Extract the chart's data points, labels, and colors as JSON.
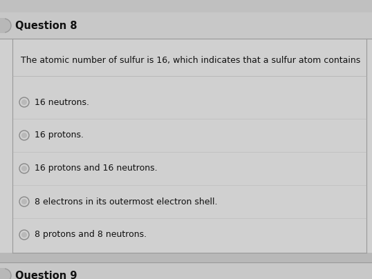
{
  "title": "Question 8",
  "question_text": "The atomic number of sulfur is 16, which indicates that a sulfur atom contains",
  "options": [
    "16 neutrons.",
    "16 protons.",
    "16 protons and 16 neutrons.",
    "8 electrons in its outermost electron shell.",
    "8 protons and 8 neutrons."
  ],
  "bg_color": "#b8b8b8",
  "outer_bg": "#b0b0b0",
  "card_bg": "#d4d4d4",
  "header_bg": "#c8c8c8",
  "body_bg": "#d0d0d0",
  "footer_bg": "#c8c8c8",
  "border_color": "#999999",
  "title_fontsize": 10.5,
  "question_fontsize": 9.0,
  "option_fontsize": 9.0,
  "text_color": "#111111",
  "radio_outer_color": "#888888",
  "radio_inner_color": "#b0b0b0",
  "footer_title": "Question 9",
  "indicator_color": "#707080",
  "divider_color": "#aaaaaa",
  "top_bar_color": "#c0c0c0"
}
